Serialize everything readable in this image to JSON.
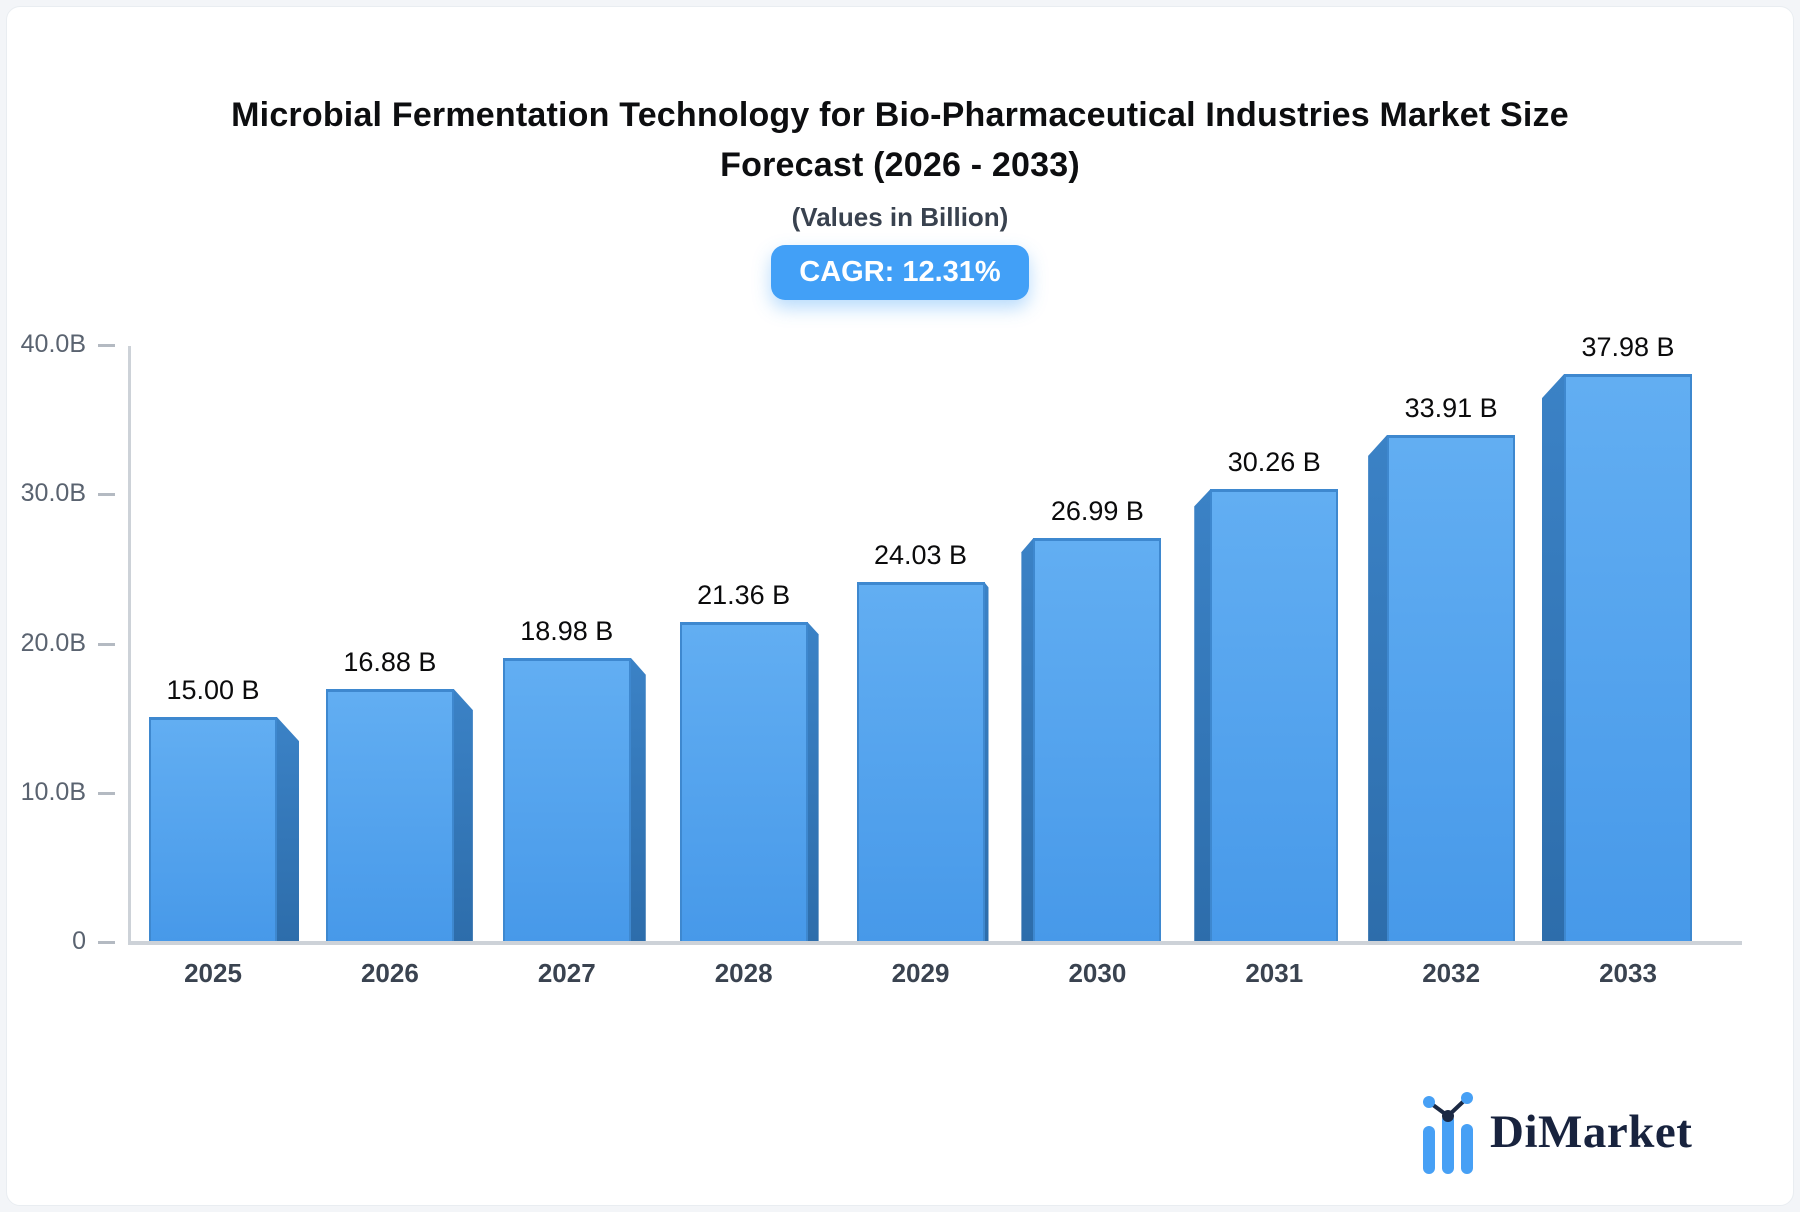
{
  "title_lines": [
    "Microbial Fermentation Technology for Bio-Pharmaceutical Industries Market Size",
    "Forecast (2026 - 2033)"
  ],
  "subtitle": "(Values in Billion)",
  "cagr_badge": "CAGR: 12.31%",
  "brand": {
    "name": "DiMarket"
  },
  "chart_data": {
    "type": "bar",
    "title": "Microbial Fermentation Technology for Bio-Pharmaceutical Industries Market Size Forecast (2026 - 2033)",
    "subtitle": "(Values in Billion)",
    "cagr_percent": 12.31,
    "categories": [
      "2025",
      "2026",
      "2027",
      "2028",
      "2029",
      "2030",
      "2031",
      "2032",
      "2033"
    ],
    "values": [
      15.0,
      16.88,
      18.98,
      21.36,
      24.03,
      26.99,
      30.26,
      33.91,
      37.98
    ],
    "value_labels": [
      "15.00 B",
      "16.88 B",
      "18.98 B",
      "21.36 B",
      "24.03 B",
      "26.99 B",
      "30.26 B",
      "33.91 B",
      "37.98 B"
    ],
    "unit": "Billion",
    "xlabel": "",
    "ylabel": "",
    "ylim": [
      0,
      40
    ],
    "yticks": [
      {
        "label": "40.0B",
        "value": 40
      },
      {
        "label": "30.0B",
        "value": 30
      },
      {
        "label": "20.0B",
        "value": 20
      },
      {
        "label": "10.0B",
        "value": 10
      },
      {
        "label": "0",
        "value": 0
      }
    ],
    "grid": false,
    "legend": "none",
    "bar_style": "3d-perspective",
    "colors": {
      "bar_face_top": "#62aef2",
      "bar_face_bottom": "#4799e9",
      "bar_stroke": "#3e88cf",
      "bar_side_top": "#3b82c6",
      "bar_side_bottom": "#2d6dab",
      "badge_bg": "#42a0f7",
      "axis_line": "#cdd2d8",
      "tick_dash": "#b4bac2",
      "tick_text": "#5a6370",
      "xlabel_text": "#3a4350",
      "value_text": "#0b0b0c",
      "logo_blue": "#47a0f5",
      "logo_navy": "#1b2944"
    }
  }
}
